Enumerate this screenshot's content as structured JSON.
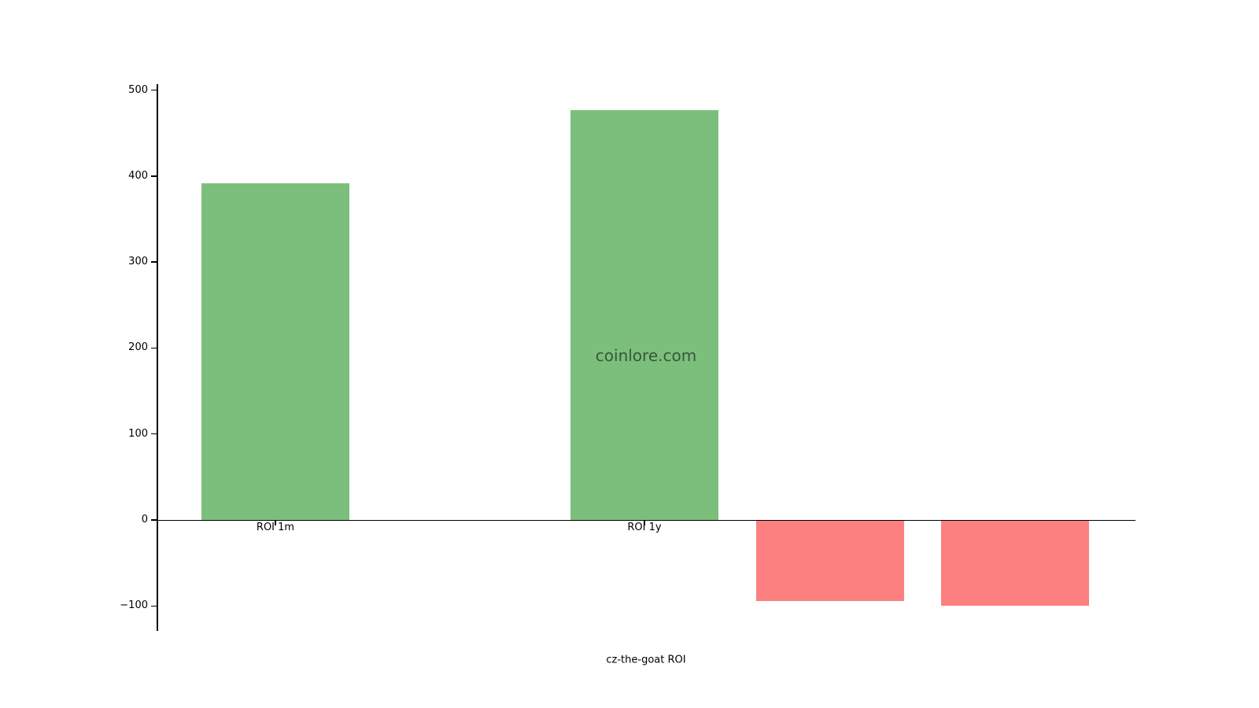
{
  "watermark": "coinlore.com",
  "title": "cz-the-goat ROI",
  "chart_data": {
    "type": "bar",
    "title": "cz-the-goat ROI",
    "categories": [
      "ROI 1m",
      "ROI 1y",
      "",
      ""
    ],
    "values": [
      392,
      477,
      -94,
      -100
    ],
    "xlabel": "",
    "ylabel": "",
    "ylim": [
      -128,
      507
    ],
    "y_ticks": [
      {
        "label": "500",
        "value": 500
      },
      {
        "label": "400",
        "value": 400
      },
      {
        "label": "300",
        "value": 300
      },
      {
        "label": "200",
        "value": 200
      },
      {
        "label": "100",
        "value": 100
      },
      {
        "label": "0",
        "value": 0
      },
      {
        "label": "−100",
        "value": -100
      }
    ],
    "grid": false,
    "legend": false,
    "colors": {
      "positive_bar": "#7cbf7c",
      "negative_bar": "#fd8080",
      "axis": "#000000",
      "text": "#000000"
    },
    "watermark": "coinlore.com"
  }
}
